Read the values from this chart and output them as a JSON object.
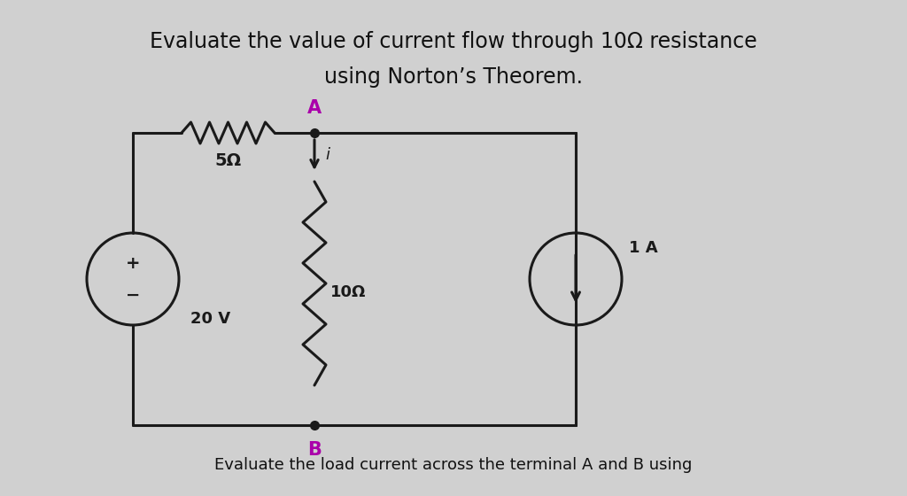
{
  "title_line1": "Evaluate the value of current flow through 10Ω resistance",
  "title_line2": "using Norton’s Theorem.",
  "bg_color": "#d0d0d0",
  "circuit_bg": "#d0d0d0",
  "line_color": "#1a1a1a",
  "label_A_color": "#aa00aa",
  "label_B_color": "#aa00aa",
  "label_A": "A",
  "label_B": "B",
  "resistor_5": "5Ω",
  "resistor_10": "10Ω",
  "current_label": "i",
  "current_source_label": "1 A",
  "voltage_source_label": "20 V",
  "font_size_title": 17,
  "font_size_labels": 15
}
